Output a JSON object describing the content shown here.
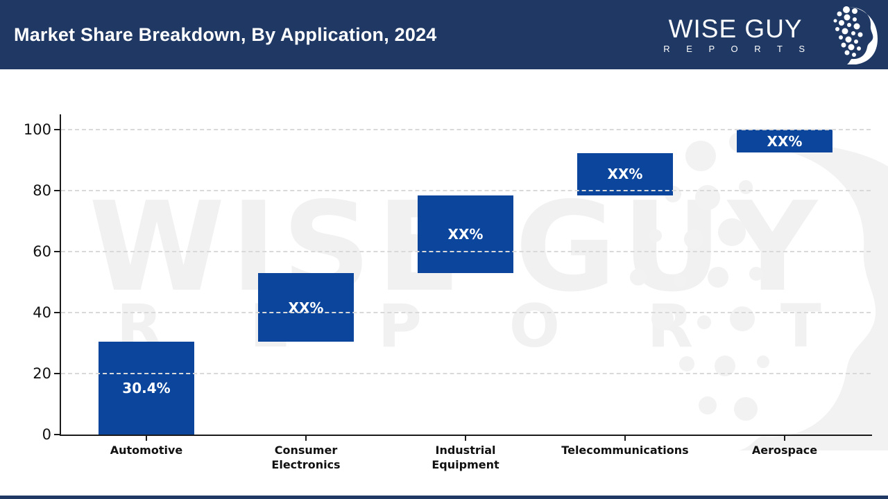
{
  "header": {
    "title": "Market Share Breakdown, By Application, 2024",
    "logo": {
      "line1": "WISE GUY",
      "line2": "R E P O R T S"
    }
  },
  "watermark": {
    "line1": "WISE GUY",
    "line2": "R E P O R T S"
  },
  "footer": {},
  "colors": {
    "header_bg": "#1f3864",
    "footer_bg": "#1f3864",
    "bar": "#0b459c",
    "bar_label": "#ffffff",
    "grid": "#d9d9d9",
    "axis": "#1a1a1a",
    "watermark": "#f1f1f1"
  },
  "chart_data": {
    "type": "bar",
    "variant": "waterfall",
    "title": "Market Share Breakdown, By Application, 2024",
    "categories": [
      "Automotive",
      "Consumer Electronics",
      "Industrial Equipment",
      "Telecommunications",
      "Aerospace"
    ],
    "category_lines": [
      [
        "Automotive"
      ],
      [
        "Consumer",
        "Electronics"
      ],
      [
        "Industrial",
        "Equipment"
      ],
      [
        "Telecommunications"
      ],
      [
        "Aerospace"
      ]
    ],
    "segments": [
      {
        "category": "Automotive",
        "start": 0.0,
        "end": 30.4,
        "label": "30.4%"
      },
      {
        "category": "Consumer Electronics",
        "start": 30.4,
        "end": 53.0,
        "label": "XX%"
      },
      {
        "category": "Industrial Equipment",
        "start": 53.0,
        "end": 78.3,
        "label": "XX%"
      },
      {
        "category": "Telecommunications",
        "start": 78.5,
        "end": 92.2,
        "label": "XX%"
      },
      {
        "category": "Aerospace",
        "start": 92.4,
        "end": 100.0,
        "label": "XX%"
      }
    ],
    "yticks": [
      0,
      20,
      40,
      60,
      80,
      100
    ],
    "ylim": [
      0,
      104.5
    ],
    "xlabel": "",
    "ylabel": "",
    "grid": {
      "visible": true,
      "style": "dashed",
      "axis": "y"
    },
    "legend": null
  }
}
